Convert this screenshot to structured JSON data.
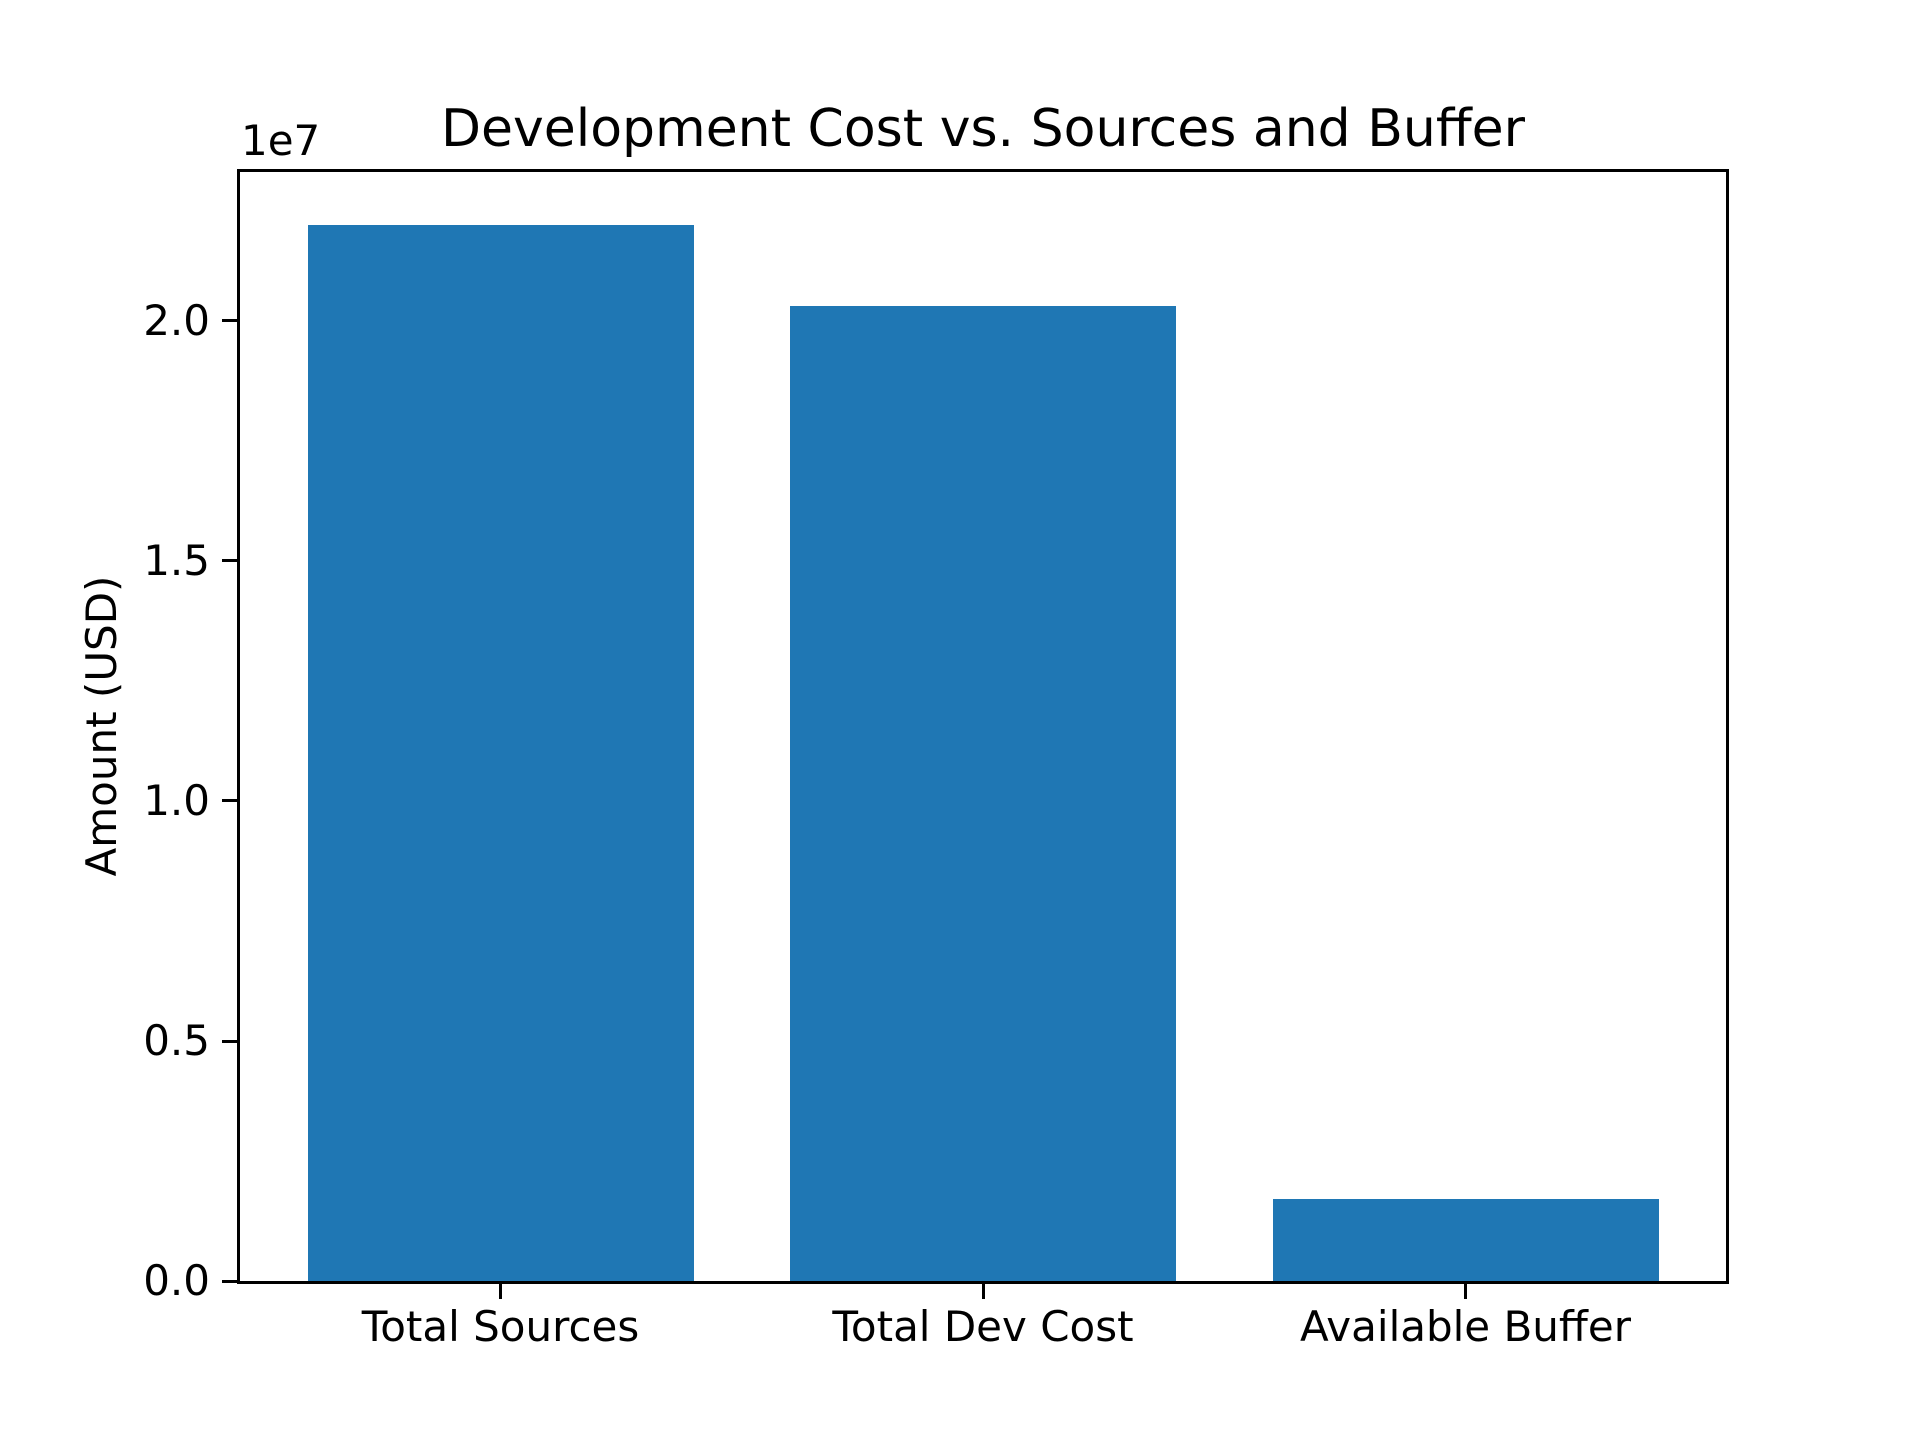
{
  "chart_data": {
    "type": "bar",
    "title": "Development Cost vs. Sources and Buffer",
    "xlabel": "",
    "ylabel": "Amount (USD)",
    "y_offset_label": "1e7",
    "categories": [
      "Total Sources",
      "Total Dev Cost",
      "Available Buffer"
    ],
    "values": [
      22000000,
      20300000,
      1700000
    ],
    "bar_color": "#1f77b4",
    "axis_color": "#000000",
    "background_color": "#ffffff",
    "bar_width": 0.8,
    "xlim": [
      -0.54,
      2.54
    ],
    "ylim": [
      0,
      23100000
    ],
    "yticks": [
      {
        "value": 0,
        "label": "0.0"
      },
      {
        "value": 5000000,
        "label": "0.5"
      },
      {
        "value": 10000000,
        "label": "1.0"
      },
      {
        "value": 15000000,
        "label": "1.5"
      },
      {
        "value": 20000000,
        "label": "2.0"
      }
    ],
    "grid": false,
    "legend_position": "none"
  }
}
